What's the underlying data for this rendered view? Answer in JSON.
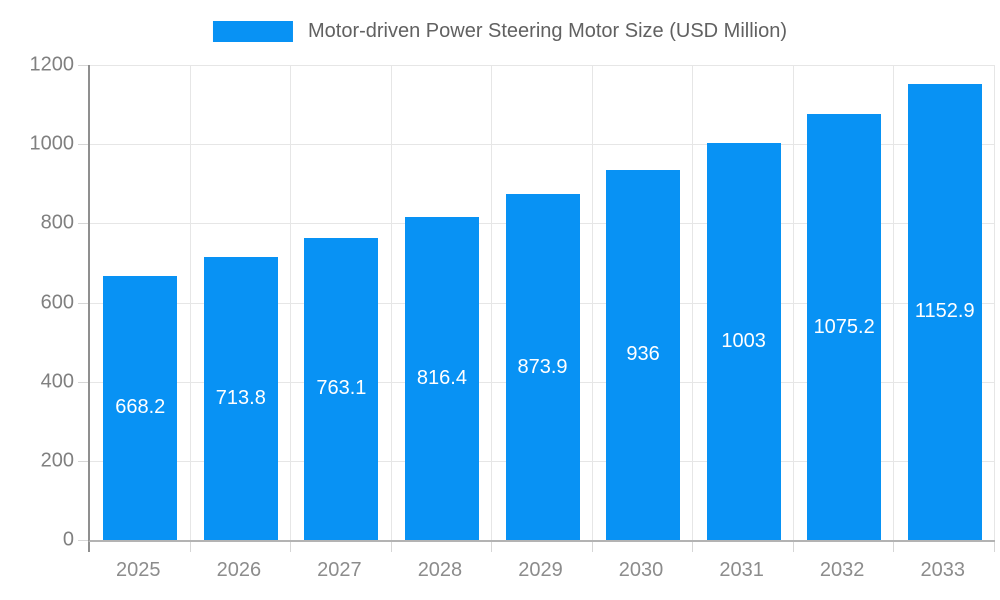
{
  "legend": {
    "label": "Motor-driven Power Steering Motor Size (USD Million)"
  },
  "colors": {
    "bar": "#0892f4",
    "grid": "#e6e6e6",
    "x_axis": "#b3b3b3",
    "y_axis": "#8f8f8f",
    "axis_label_text": "#808080",
    "legend_text": "#616161",
    "value_label_text": "#ffffff"
  },
  "chart_data": {
    "type": "bar",
    "title": "Motor-driven Power Steering Motor Size (USD Million)",
    "categories": [
      "2025",
      "2026",
      "2027",
      "2028",
      "2029",
      "2030",
      "2031",
      "2032",
      "2033"
    ],
    "values": [
      668.2,
      713.8,
      763.1,
      816.4,
      873.9,
      936,
      1003,
      1075.2,
      1152.9
    ],
    "value_labels": [
      "668.2",
      "713.8",
      "763.1",
      "816.4",
      "873.9",
      "936",
      "1003",
      "1075.2",
      "1152.9"
    ],
    "xlabel": "",
    "ylabel": "",
    "ylim": [
      0,
      1200
    ],
    "yticks": [
      0,
      200,
      400,
      600,
      800,
      1000,
      1200
    ],
    "grid": true,
    "legend_position": "top-center",
    "value_label_position": "center-of-bar"
  }
}
